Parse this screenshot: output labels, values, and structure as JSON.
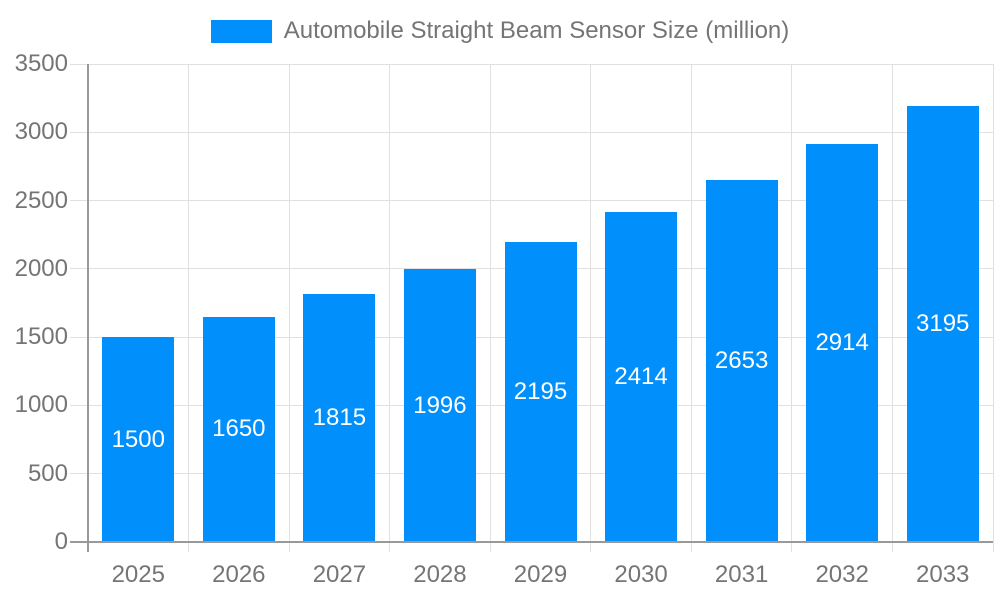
{
  "legend": {
    "label": "Automobile Straight Beam Sensor Size (million)",
    "swatch_color": "#008FFB"
  },
  "chart_data": {
    "type": "bar",
    "title": "Automobile Straight Beam Sensor Size (million)",
    "categories": [
      "2025",
      "2026",
      "2027",
      "2028",
      "2029",
      "2030",
      "2031",
      "2032",
      "2033"
    ],
    "series": [
      {
        "name": "Automobile Straight Beam Sensor Size (million)",
        "values": [
          1500,
          1650,
          1815,
          1996,
          2195,
          2414,
          2653,
          2914,
          3195
        ],
        "color": "#008FFB"
      }
    ],
    "value_labels_position": "inside-center",
    "xlabel": "",
    "ylabel": "",
    "ylim": [
      0,
      3500
    ],
    "ytick_interval": 500,
    "yticks": [
      0,
      500,
      1000,
      1500,
      2000,
      2500,
      3000,
      3500
    ],
    "grid": true,
    "legend_position": "top-center",
    "colors": {
      "axis_text": "#757575",
      "bar_label": "#ffffff",
      "gridline": "#e0e0e0",
      "axis_line": "#999999",
      "background": "#ffffff"
    }
  }
}
